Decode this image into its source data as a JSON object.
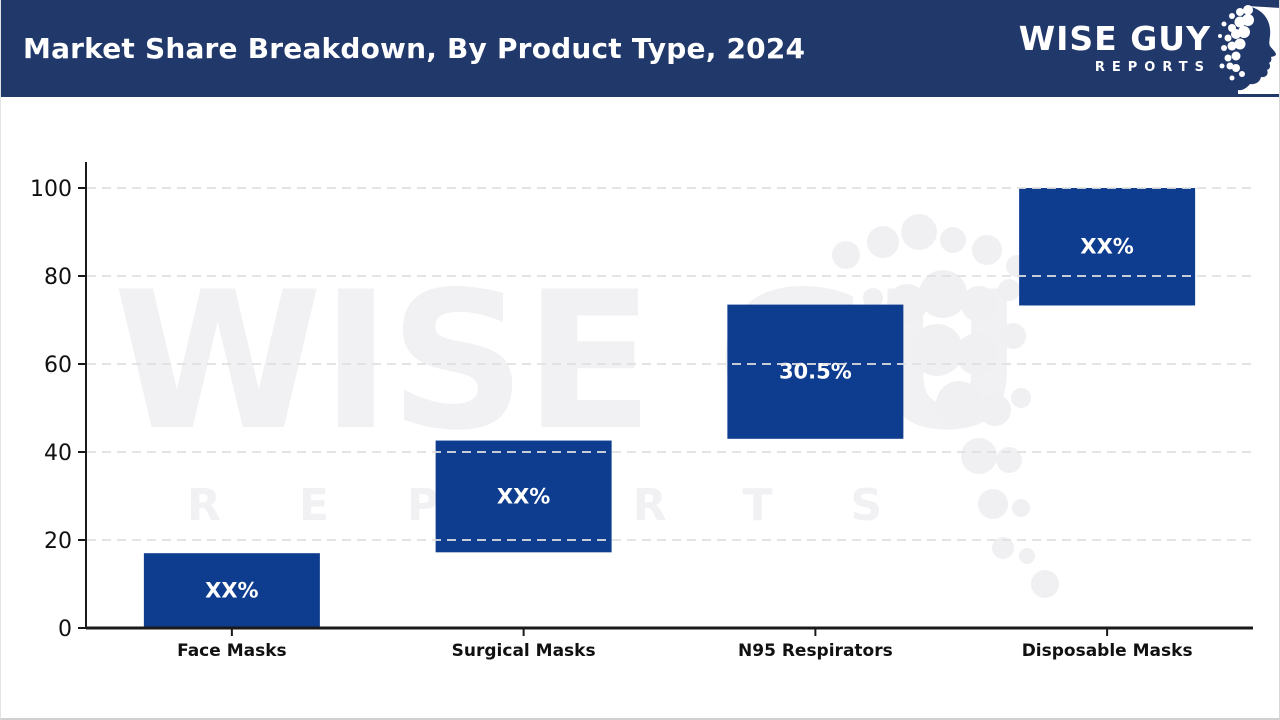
{
  "header": {
    "title": "Market Share Breakdown, By Product Type, 2024",
    "background_color": "#21386b",
    "logo": {
      "wordmark": "WISE GUY",
      "subtext": "REPORTS"
    }
  },
  "watermark": {
    "wordmark": "WISE GU",
    "subtext": "REPORTS"
  },
  "chart_data": {
    "type": "bar",
    "subtype": "floating-segment-waterfall",
    "title": "Market Share Breakdown, By Product Type, 2024",
    "categories": [
      "Face Masks",
      "Surgical Masks",
      "N95 Respirators",
      "Disposable Masks"
    ],
    "bars": [
      {
        "category": "Face Masks",
        "start": 0,
        "end": 17,
        "label": "XX%"
      },
      {
        "category": "Surgical Masks",
        "start": 17.2,
        "end": 42.6,
        "label": "XX%"
      },
      {
        "category": "N95 Respirators",
        "start": 43,
        "end": 73.5,
        "label": "30.5%"
      },
      {
        "category": "Disposable Masks",
        "start": 73.3,
        "end": 100,
        "label": "XX%"
      }
    ],
    "xlabel": "",
    "ylabel": "",
    "ylim": [
      0,
      100
    ],
    "yticks": [
      0,
      20,
      40,
      60,
      80,
      100
    ],
    "grid": {
      "horizontal": true,
      "style": "dashed",
      "drawn_above_bars": true
    },
    "legend": "none",
    "bar_color": "#0e3d8f",
    "bar_label_color": "#ffffff",
    "axis_color": "#1a1a1a",
    "grid_color": "#e0e0e0"
  }
}
